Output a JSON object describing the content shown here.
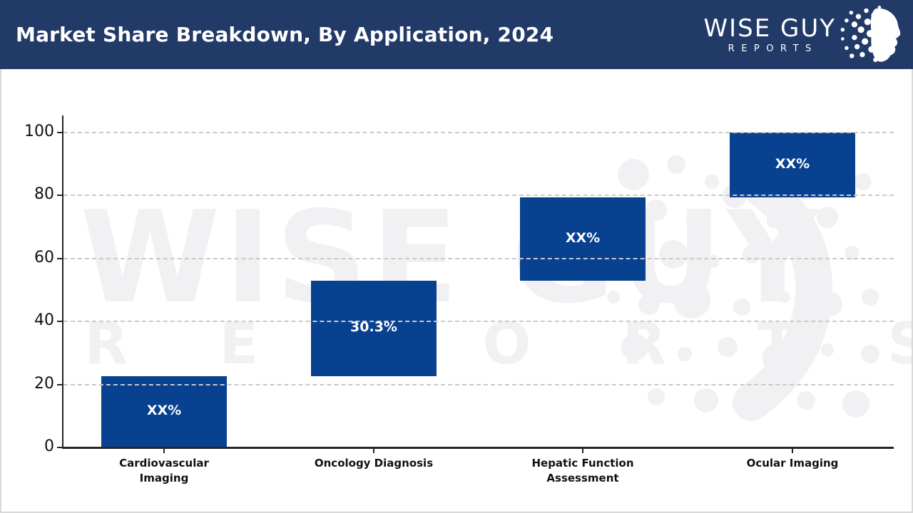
{
  "header": {
    "title": "Market Share Breakdown, By Application, 2024",
    "logo": {
      "primary": "WISE GUY",
      "secondary": "REPORTS"
    }
  },
  "watermark": {
    "primary": "WISE GUY",
    "secondary": "R E P O R T S"
  },
  "colors": {
    "header_bg": "#213A67",
    "bar": "#07418F",
    "grid": "#C9C9C9",
    "axis": "#262626",
    "watermark": "#F1F1F3",
    "bar_label": "#FFFFFF"
  },
  "chart_data": {
    "type": "bar",
    "subtype": "floating-waterfall",
    "title": "Market Share Breakdown, By Application, 2024",
    "categories": [
      "Cardiovascular Imaging",
      "Oncology Diagnosis",
      "Hepatic Function Assessment",
      "Ocular Imaging"
    ],
    "category_label_lines": [
      [
        "Cardiovascular",
        "Imaging"
      ],
      [
        "Oncology Diagnosis"
      ],
      [
        "Hepatic Function",
        "Assessment"
      ],
      [
        "Ocular Imaging"
      ]
    ],
    "segments": [
      {
        "category": "Cardiovascular Imaging",
        "start": 0,
        "end": 22.7,
        "label": "XX%"
      },
      {
        "category": "Oncology Diagnosis",
        "start": 22.7,
        "end": 53.0,
        "label": "30.3%"
      },
      {
        "category": "Hepatic Function Assessment",
        "start": 53.0,
        "end": 79.3,
        "label": "XX%"
      },
      {
        "category": "Ocular Imaging",
        "start": 79.3,
        "end": 100,
        "label": "XX%"
      }
    ],
    "xlabel": "",
    "ylabel": "",
    "ylim": [
      0,
      100
    ],
    "yticks": [
      0,
      20,
      40,
      60,
      80,
      100
    ],
    "grid": "horizontal-dashed",
    "legend": null
  }
}
